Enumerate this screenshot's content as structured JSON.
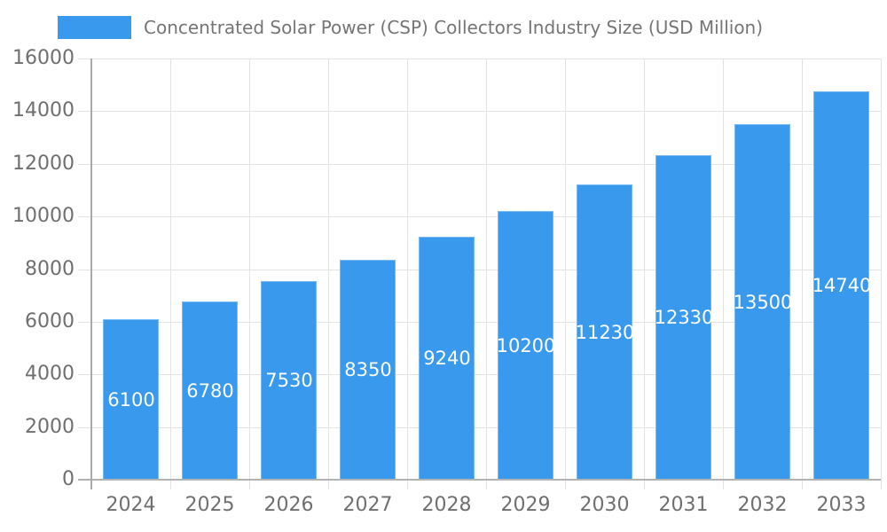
{
  "legend": {
    "label": "Concentrated Solar Power (CSP) Collectors Industry Size (USD Million)"
  },
  "chart_data": {
    "type": "bar",
    "title": "Concentrated Solar Power (CSP) Collectors Industry Size (USD Million)",
    "categories": [
      "2024",
      "2025",
      "2026",
      "2027",
      "2028",
      "2029",
      "2030",
      "2031",
      "2032",
      "2033"
    ],
    "values": [
      6100,
      6780,
      7530,
      8350,
      9240,
      10200,
      11230,
      12330,
      13500,
      14740
    ],
    "bar_value_labels": [
      "6100",
      "6780",
      "7530",
      "8350",
      "9240",
      "10200",
      "11230",
      "12330",
      "13500",
      "14740"
    ],
    "xlabel": "",
    "ylabel": "",
    "ylim": [
      0,
      16000
    ],
    "ytick_step": 2000,
    "yticks": [
      0,
      2000,
      4000,
      6000,
      8000,
      10000,
      12000,
      14000,
      16000
    ],
    "grid": true,
    "legend_position": "top-left",
    "value_labels_inside_bars": true,
    "colors": {
      "bar_fill": "#3999EC",
      "bar_stroke": "#7ABAF1",
      "bar_label_text": "#FFFFFF",
      "grid_line": "#E3E3E3",
      "axis_line": "#A9A9A9",
      "baseline": "#B3B3B3",
      "axis_text": "#6F6F6F",
      "title_text": "#757575",
      "background": "#FFFFFF"
    }
  }
}
